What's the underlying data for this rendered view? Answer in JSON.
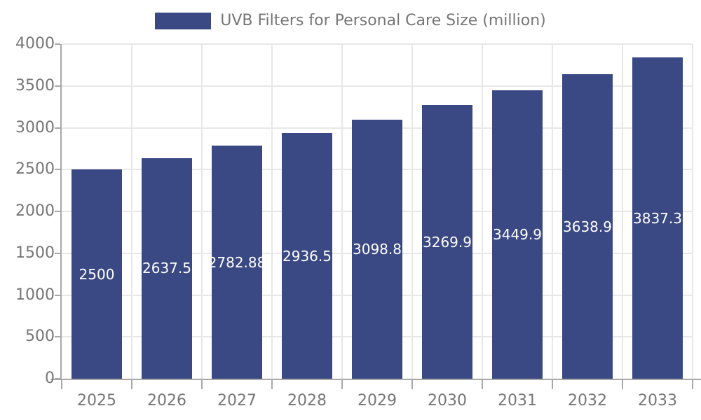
{
  "legend": {
    "label": "UVB Filters for Personal Care Size (million)"
  },
  "colors": {
    "bar": "#3a4883",
    "axis_line": "#a8a8a8",
    "gridline": "#e7e7e7",
    "tick_text": "#767676",
    "bar_label_text": "#ffffff",
    "background": "#ffffff"
  },
  "chart_data": {
    "type": "bar",
    "title": "UVB Filters for Personal Care Size (million)",
    "xlabel": "",
    "ylabel": "",
    "categories": [
      "2025",
      "2026",
      "2027",
      "2028",
      "2029",
      "2030",
      "2031",
      "2032",
      "2033"
    ],
    "values": [
      2500,
      2637.5,
      2782.88,
      2936.5,
      3098.8,
      3269.9,
      3449.9,
      3638.9,
      3837.3
    ],
    "bar_labels": [
      "2500",
      "2637.5",
      "2782.88",
      "2936.5",
      "3098.8",
      "3269.9",
      "3449.9",
      "3638.9",
      "3837.3"
    ],
    "ylim": [
      0,
      4000
    ],
    "yticks": [
      0,
      500,
      1000,
      1500,
      2000,
      2500,
      3000,
      3500,
      4000
    ],
    "grid": true,
    "legend_position": "top-center",
    "bar_label_position": "inside-center"
  }
}
